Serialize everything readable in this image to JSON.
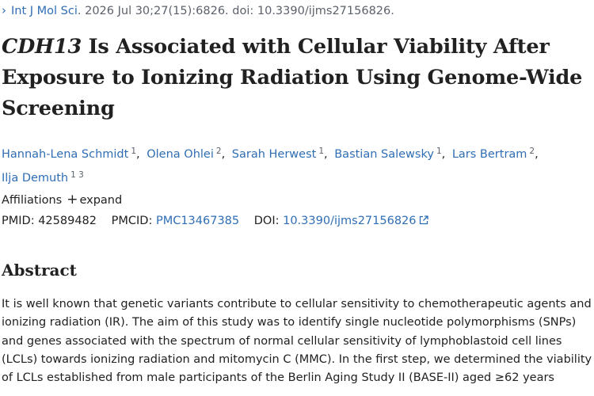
{
  "journal": {
    "chevron": "›",
    "name": "Int J Mol Sci",
    "citation": ". 2026 Jul 30;27(15):6826. doi: 10.3390/ijms27156826."
  },
  "title": {
    "gene": "CDH13",
    "rest": " Is Associated with Cellular Viability After Exposure to Ionizing Radiation Using Genome-Wide Screening"
  },
  "authors": [
    {
      "name": "Hannah-Lena Schmidt",
      "sup": "1"
    },
    {
      "name": "Olena Ohlei",
      "sup": "2"
    },
    {
      "name": "Sarah Herwest",
      "sup": "1"
    },
    {
      "name": "Bastian Salewsky",
      "sup": "1"
    },
    {
      "name": "Lars Bertram",
      "sup": "2"
    },
    {
      "name": "Ilja Demuth",
      "sup": "1 3"
    }
  ],
  "affiliations": {
    "label": "Affiliations",
    "expand_icon": "+",
    "expand_label": "expand"
  },
  "ids": {
    "pmid_label": "PMID:",
    "pmid": "42589482",
    "pmcid_label": "PMCID:",
    "pmcid": "PMC13467385",
    "doi_label": "DOI:",
    "doi": "10.3390/ijms27156826",
    "doi_icon": "external-link-icon"
  },
  "abstract": {
    "heading": "Abstract",
    "text": "It is well known that genetic variants contribute to cellular sensitivity to chemotherapeutic agents and ionizing radiation (IR). The aim of this study was to identify single nucleotide polymorphisms (SNPs) and genes associated with the spectrum of normal cellular sensitivity of lymphoblastoid cell lines (LCLs) towards ionizing radiation and mitomycin C (MMC). In the first step, we determined the viability of LCLs established from male participants of the Berlin Aging Study II (BASE-II) aged ≥62 years"
  },
  "colors": {
    "link": "#2f6eb5",
    "text": "#212121",
    "muted": "#5b616b"
  }
}
